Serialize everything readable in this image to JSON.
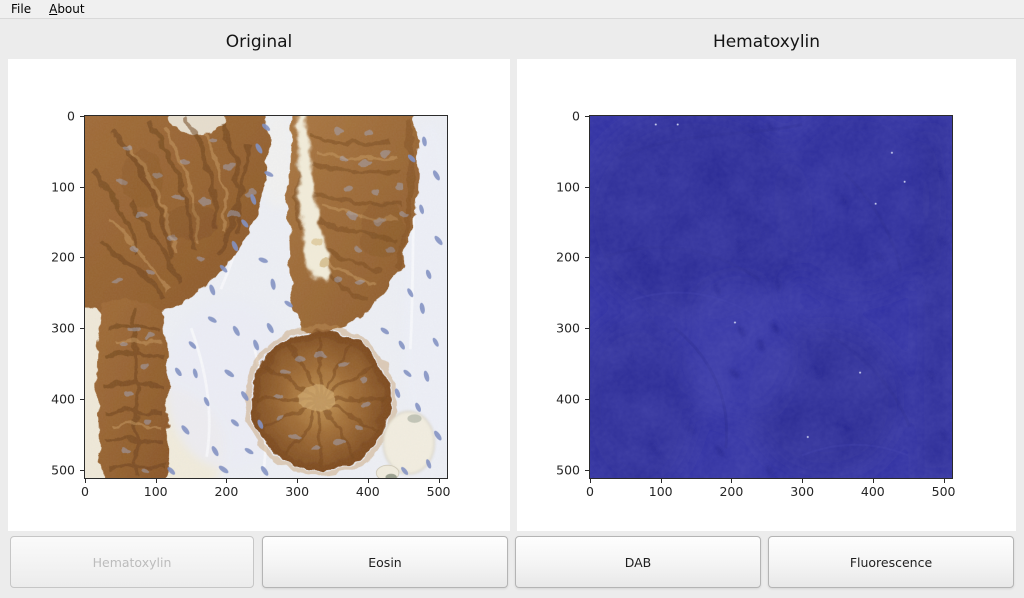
{
  "menubar": {
    "file_label": "File",
    "about_accel": "A",
    "about_rest": "bout"
  },
  "panels": [
    {
      "title": "Original",
      "x_ticks": [
        "0",
        "100",
        "200",
        "300",
        "400",
        "500"
      ],
      "y_ticks": [
        "0",
        "100",
        "200",
        "300",
        "400",
        "500"
      ],
      "description": "IHC-stained tissue: brown DAB-positive glands with blue hematoxylin nuclei in pale stroma"
    },
    {
      "title": "Hematoxylin",
      "x_ticks": [
        "0",
        "100",
        "200",
        "300",
        "400",
        "500"
      ],
      "y_ticks": [
        "0",
        "100",
        "200",
        "300",
        "400",
        "500"
      ],
      "description": "Separated hematoxylin channel rendered as a deep blue image with darker nuclei"
    }
  ],
  "buttons": [
    {
      "label": "Hematoxylin",
      "enabled": false
    },
    {
      "label": "Eosin",
      "enabled": true
    },
    {
      "label": "DAB",
      "enabled": true
    },
    {
      "label": "Fluorescence",
      "enabled": true
    }
  ],
  "colors": {
    "window_bg": "#ececec",
    "panel_bg": "#ffffff",
    "hematoxylin_blue": "#2f2f9e",
    "dab_brown": "#9a6632",
    "nuclei_blue": "#8090c2",
    "disabled_text": "#bcbcbc"
  }
}
